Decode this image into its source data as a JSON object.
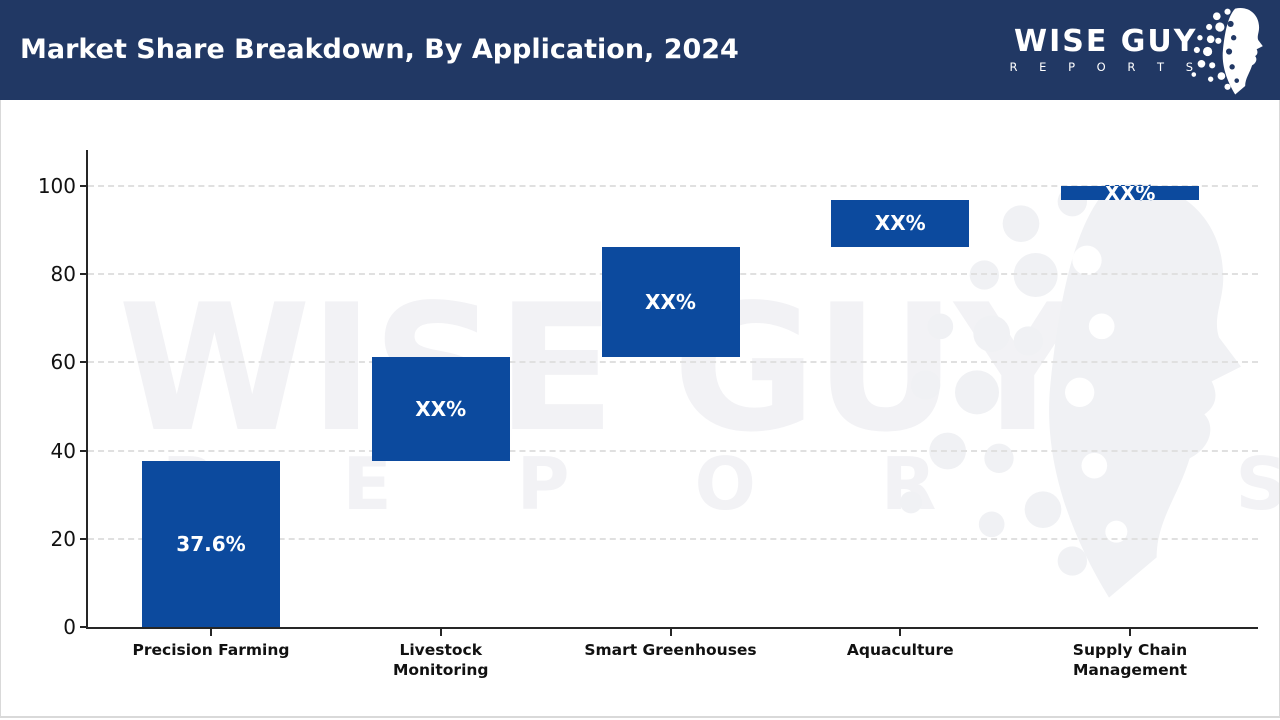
{
  "header": {
    "title": "Market Share Breakdown, By Application, 2024",
    "bg_color": "#213864",
    "logo": {
      "line1": "WISE GUY",
      "line2": "R E P O R T S"
    }
  },
  "watermark": {
    "line1": "WISE GUY",
    "line2": "R E P O R T S"
  },
  "chart_data": {
    "type": "bar",
    "subtype": "waterfall",
    "title": "Market Share Breakdown, By Application, 2024",
    "categories": [
      "Precision Farming",
      "Livestock Monitoring",
      "Smart Greenhouses",
      "Aquaculture",
      "Supply Chain Management"
    ],
    "tick_labels": [
      "Precision Farming",
      "Livestock\nMonitoring",
      "Smart Greenhouses",
      "Aquaculture",
      "Supply Chain\nManagement"
    ],
    "segments": [
      {
        "category": "Precision Farming",
        "start": 0,
        "end": 37.6,
        "label": "37.6%"
      },
      {
        "category": "Livestock Monitoring",
        "start": 37.6,
        "end": 61.2,
        "label": "XX%"
      },
      {
        "category": "Smart Greenhouses",
        "start": 61.2,
        "end": 86.2,
        "label": "XX%"
      },
      {
        "category": "Aquaculture",
        "start": 86.2,
        "end": 96.8,
        "label": "XX%"
      },
      {
        "category": "Supply Chain Management",
        "start": 96.8,
        "end": 100,
        "label": "XX%"
      }
    ],
    "yticks": [
      0,
      20,
      40,
      60,
      80,
      100
    ],
    "ylim": [
      0,
      108
    ],
    "ylabel": "",
    "xlabel": "",
    "bar_color": "#0c4a9e",
    "grid": "horizontal-dashed",
    "legend": "none"
  }
}
